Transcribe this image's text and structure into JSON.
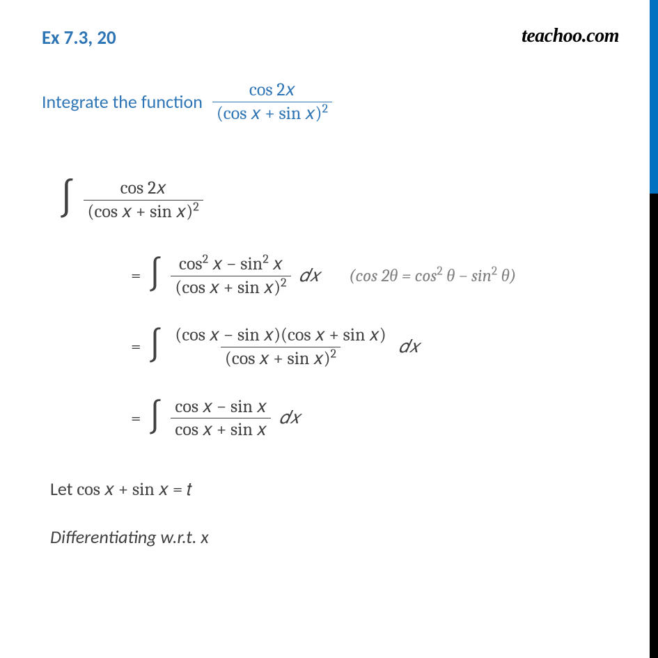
{
  "header": {
    "exercise_label": "Ex 7.3, 20",
    "watermark": "teachoo.com"
  },
  "prompt": {
    "text": "Integrate the function",
    "frac_num": "cos 2𝑥",
    "frac_den_base": "(cos 𝑥 + sin 𝑥)",
    "frac_den_exp": "2"
  },
  "step1": {
    "frac_num": "cos 2𝑥",
    "frac_den_base": "(cos 𝑥 + sin 𝑥)",
    "frac_den_exp": "2"
  },
  "step2": {
    "num_a": "cos",
    "num_b": "𝑥 − sin",
    "num_c": "𝑥",
    "den_base": "(cos 𝑥 + sin 𝑥)",
    "den_exp": "2",
    "dx": "𝑑𝑥"
  },
  "identity": {
    "text_a": "(cos 2θ = cos",
    "text_b": " θ − sin",
    "text_c": " θ)"
  },
  "step3": {
    "num": "(cos 𝑥 − sin 𝑥)(cos 𝑥 + sin 𝑥)",
    "den_base": "(cos 𝑥 + sin 𝑥)",
    "den_exp": "2",
    "dx": "𝑑𝑥"
  },
  "step4": {
    "num": "cos 𝑥 − sin 𝑥",
    "den": "cos 𝑥 + sin 𝑥",
    "dx": "𝑑𝑥"
  },
  "let_line": {
    "prefix": "Let ",
    "expr": "cos 𝑥 + sin 𝑥 = 𝑡"
  },
  "diff_line": "Differentiating w.r.t. x",
  "colors": {
    "heading_blue": "#2e75b6",
    "body_text": "#404040",
    "identity_gray": "#7f7f7f",
    "sidebar_blue": "#0070c0",
    "sidebar_black": "#000000",
    "background": "#ffffff"
  }
}
